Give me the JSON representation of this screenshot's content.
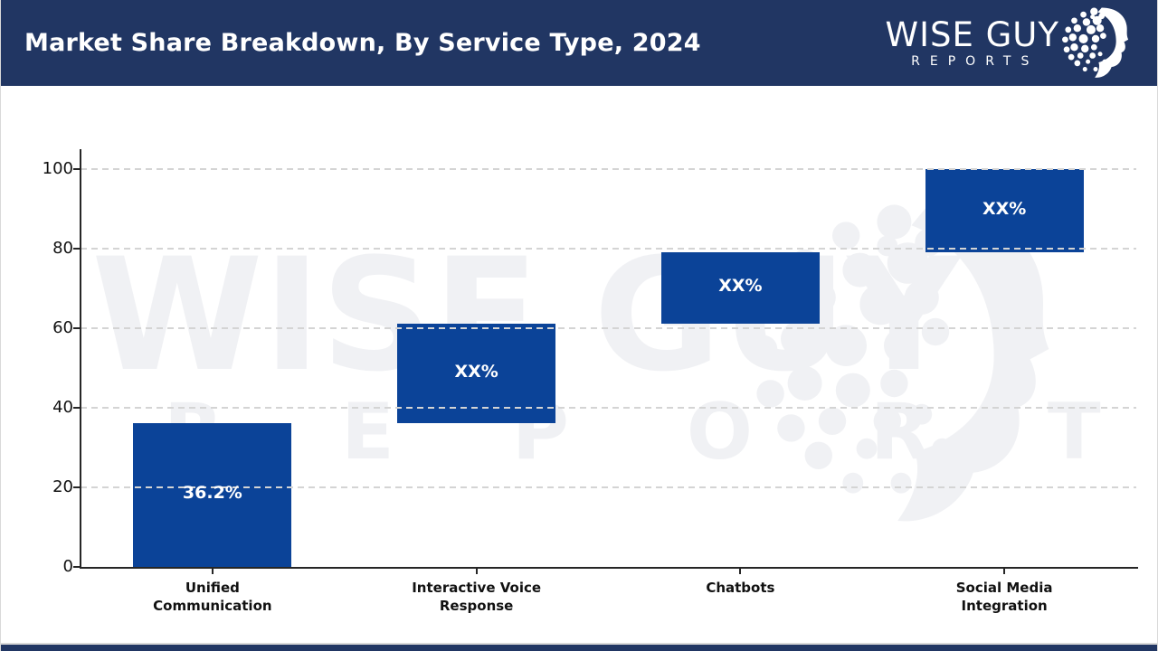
{
  "header": {
    "title": "Market Share Breakdown, By Service Type, 2024",
    "logo": {
      "line1": "WISE GUY",
      "line2": "REPORTS"
    }
  },
  "watermark": {
    "line1": "WISE GUY",
    "line2": "R E P O R T S"
  },
  "colors": {
    "header_bg": "#213663",
    "bar": "#0b4398",
    "grid": "#d4d4d4",
    "axis": "#262626",
    "watermark": "#f0f1f4"
  },
  "chart_data": {
    "type": "bar",
    "subtype": "waterfall",
    "title": "Market Share Breakdown, By Service Type, 2024",
    "categories": [
      "Unified Communication",
      "Interactive Voice Response",
      "Chatbots",
      "Social Media Integration"
    ],
    "category_display": [
      "Unified\nCommunication",
      "Interactive Voice\nResponse",
      "Chatbots",
      "Social Media\nIntegration"
    ],
    "series": [
      {
        "name": "Market Share (%)",
        "points": [
          {
            "category": "Unified Communication",
            "start": 0,
            "end": 36.2,
            "label": "36.2%"
          },
          {
            "category": "Interactive Voice Response",
            "start": 36.2,
            "end": 61.2,
            "label": "XX%"
          },
          {
            "category": "Chatbots",
            "start": 61.2,
            "end": 79.2,
            "label": "XX%"
          },
          {
            "category": "Social Media Integration",
            "start": 79.2,
            "end": 100,
            "label": "XX%"
          }
        ]
      }
    ],
    "ylim": [
      0,
      100
    ],
    "yticks": [
      0,
      20,
      40,
      60,
      80,
      100
    ],
    "grid": true,
    "legend": "none"
  }
}
